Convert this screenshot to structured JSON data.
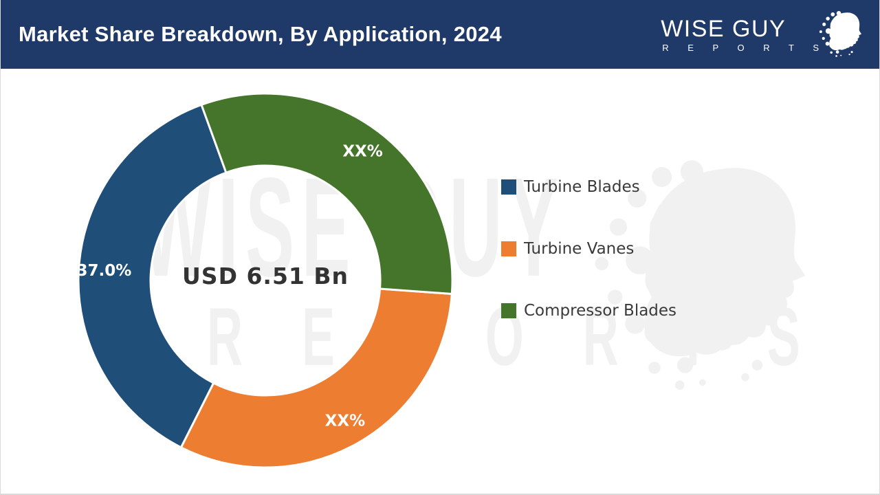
{
  "page": {
    "title": "Market Share Breakdown, By Application, 2024"
  },
  "logo": {
    "line1": "WISE GUY",
    "line2": "R E P O R T S"
  },
  "watermark": {
    "line1": "WISE GUY",
    "line2": "R E P O R T S"
  },
  "chart_data": {
    "type": "donut",
    "title": "Market Share Breakdown, By Application, 2024",
    "center_label": "USD 6.51 Bn",
    "start_angle_deg": 110,
    "direction": "counterclockwise",
    "legend_position": "right",
    "segments": [
      {
        "name": "Turbine Blades",
        "value_pct": 37.0,
        "label": "37.0%",
        "color": "#1f4e79"
      },
      {
        "name": "Turbine Vanes",
        "value_pct": 31.3,
        "label": "XX%",
        "color": "#ed7d31"
      },
      {
        "name": "Compressor Blades",
        "value_pct": 31.7,
        "label": "XX%",
        "color": "#45752b"
      }
    ],
    "colors": {
      "header_bg": "#1f3a68",
      "center_text": "#333333",
      "legend_text": "#3a3a3a",
      "slice_label": "#ffffff",
      "watermark": "#f1f1f1"
    }
  }
}
